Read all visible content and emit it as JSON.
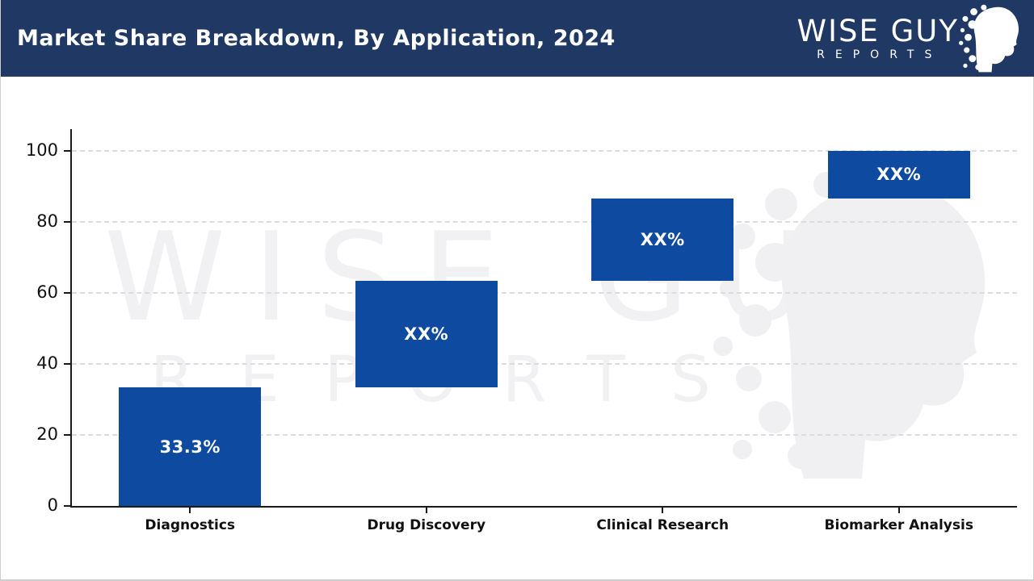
{
  "header": {
    "title": "Market Share Breakdown, By Application, 2024",
    "logo": {
      "line1": "WISE GUY",
      "line2": "REPORTS"
    }
  },
  "watermark": {
    "line1": "WISE GUY",
    "line2": "REPORTS"
  },
  "chart_data": {
    "type": "waterfall",
    "title": "Market Share Breakdown, By Application, 2024",
    "categories": [
      "Diagnostics",
      "Drug Discovery",
      "Clinical Research",
      "Biomarker Analysis"
    ],
    "segments": [
      {
        "category": "Diagnostics",
        "start": 0,
        "end": 33.3,
        "label": "33.3%"
      },
      {
        "category": "Drug Discovery",
        "start": 33.3,
        "end": 63.3,
        "label": "XX%"
      },
      {
        "category": "Clinical Research",
        "start": 63.3,
        "end": 86.7,
        "label": "XX%"
      },
      {
        "category": "Biomarker Analysis",
        "start": 86.7,
        "end": 100,
        "label": "XX%"
      }
    ],
    "y_ticks": [
      0,
      20,
      40,
      60,
      80,
      100
    ],
    "ylim": [
      0,
      106
    ],
    "grid": "dashed-horizontal",
    "legend": "none",
    "bar_color": "#0d4aa0",
    "bar_label_color": "#ffffff"
  },
  "colors": {
    "header_bg": "#1f3864",
    "bar": "#0d4aa0",
    "axis": "#1a1a1a",
    "grid": "#dcdcdc",
    "watermark": "#f1f1f3",
    "background": "#ffffff"
  }
}
